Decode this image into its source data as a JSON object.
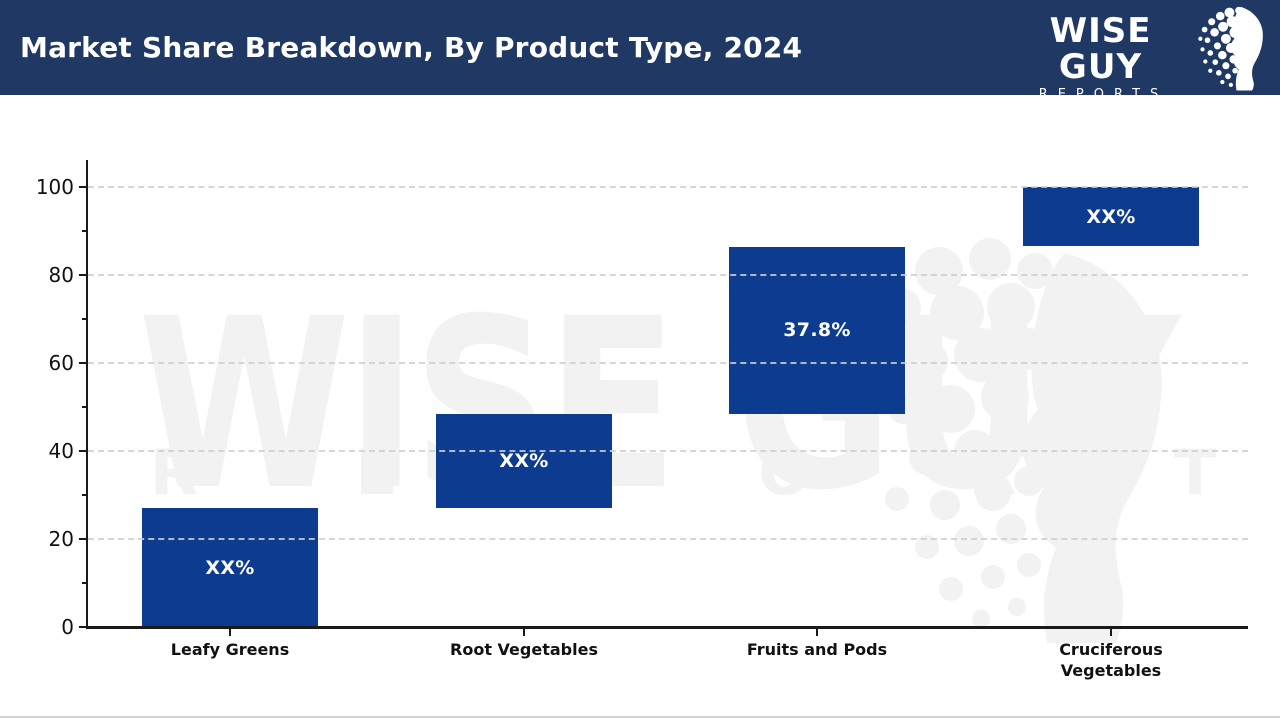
{
  "header": {
    "title": "Market Share Breakdown, By Product Type, 2024",
    "logo": {
      "line1": "WISE GUY",
      "line2": "REPORTS"
    }
  },
  "watermark": {
    "line1": "WISE GUY",
    "line2": "REPORTS"
  },
  "colors": {
    "header_bg": "#1f3864",
    "bar": "#0d3b8f",
    "bar_label": "#ffffff",
    "grid": "#cfcfcf",
    "axis": "#1a1a1a",
    "watermark": "#f2f2f2",
    "bottom_rule": "#d2d2d2"
  },
  "chart_data": {
    "type": "bar",
    "subtype": "floating-waterfall",
    "title": "Market Share Breakdown, By Product Type, 2024",
    "categories": [
      "Leafy Greens",
      "Root Vegetables",
      "Fruits and Pods",
      "Cruciferous Vegetables"
    ],
    "segments": [
      {
        "category": "Leafy Greens",
        "start": 0,
        "end": 27,
        "label": "XX%"
      },
      {
        "category": "Root Vegetables",
        "start": 27,
        "end": 48.5,
        "label": "XX%"
      },
      {
        "category": "Fruits and Pods",
        "start": 48.5,
        "end": 86.3,
        "label": "37.8%"
      },
      {
        "category": "Cruciferous Vegetables",
        "start": 86.5,
        "end": 100,
        "label": "XX%"
      }
    ],
    "xlabel": "",
    "ylabel": "",
    "ylim": [
      0,
      106
    ],
    "yticks": [
      0,
      20,
      40,
      60,
      80,
      100
    ],
    "yminorticks": [
      10,
      30,
      50,
      70,
      90
    ],
    "grid": "horizontal-dashed",
    "grid_above_bars": true,
    "legend": null
  }
}
